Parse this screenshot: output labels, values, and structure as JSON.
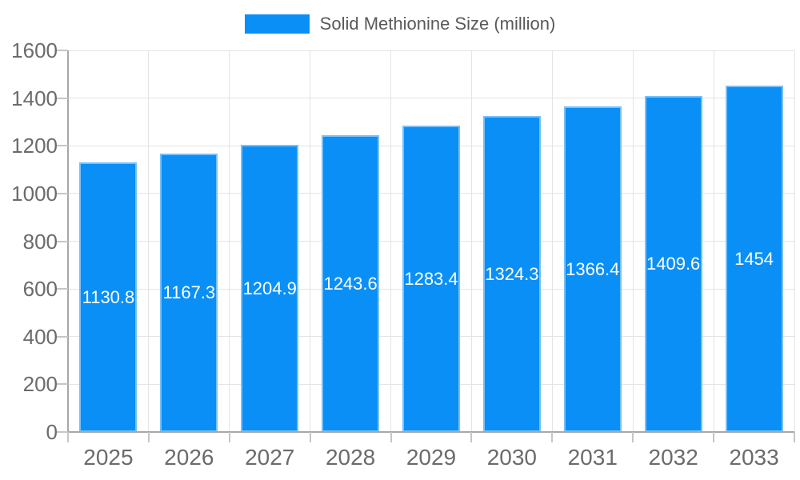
{
  "chart_data": {
    "type": "bar",
    "title": "Solid Methionine Size (million)",
    "categories": [
      "2025",
      "2026",
      "2027",
      "2028",
      "2029",
      "2030",
      "2031",
      "2032",
      "2033"
    ],
    "values": [
      1130.8,
      1167.3,
      1204.9,
      1243.6,
      1283.4,
      1324.3,
      1366.4,
      1409.6,
      1454
    ],
    "value_labels": [
      "1130.8",
      "1167.3",
      "1204.9",
      "1243.6",
      "1283.4",
      "1324.3",
      "1366.4",
      "1409.6",
      "1454"
    ],
    "xlabel": "",
    "ylabel": "",
    "ylim": [
      0,
      1600
    ],
    "yticks": [
      0,
      200,
      400,
      600,
      800,
      1000,
      1200,
      1400,
      1600
    ],
    "grid": true,
    "legend_position": "top",
    "value_label_position": "center"
  },
  "legend": {
    "label": "Solid Methionine Size (million)"
  },
  "colors": {
    "bar": "#0a8ff7",
    "bar_border": "#79c0fa",
    "value_label": "#ffffff",
    "grid": "#e4e4e4",
    "axis": "#a8a8a8",
    "tick": "#c6c6c6",
    "tick_label": "#6b6b6b",
    "legend_label": "#595959",
    "background": "#ffffff"
  }
}
